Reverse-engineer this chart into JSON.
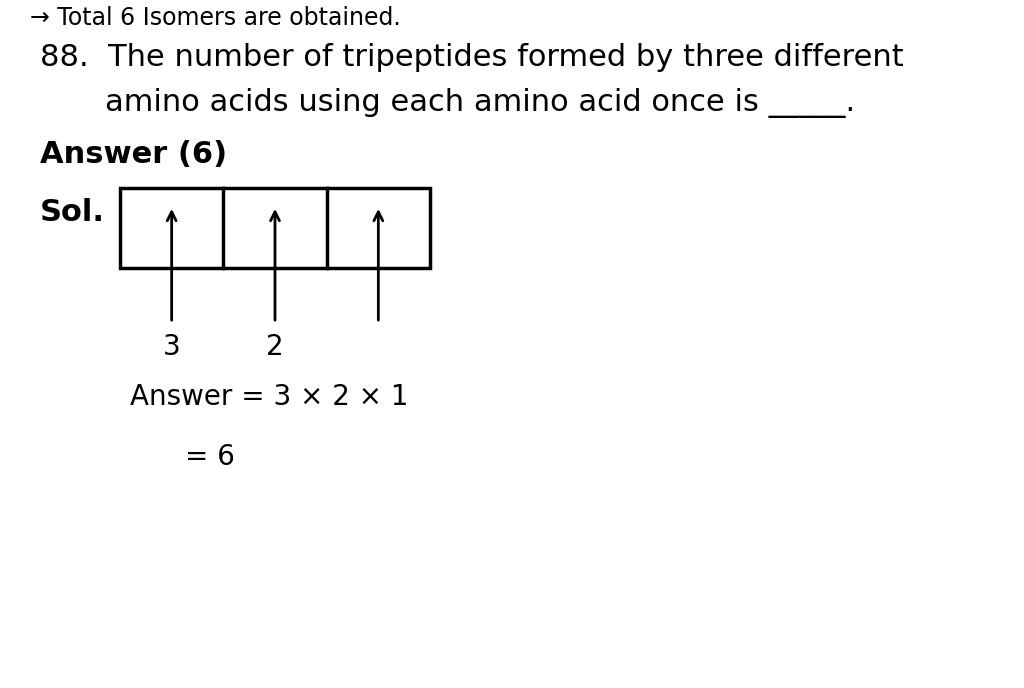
{
  "background_color": "#ffffff",
  "top_text": "→ Total 6 Isomers are obtained.",
  "question_number": "88.",
  "question_text": "The number of tripeptides formed by three different",
  "question_text2": "amino acids using each amino acid once is _____.",
  "answer_label": "Answer (6)",
  "sol_label": "Sol.",
  "num_cells": 3,
  "arrow_labels": [
    "3",
    "2"
  ],
  "answer_line1": "Answer = 3 × 2 × 1",
  "answer_line2": "= 6",
  "font_size_top": 17,
  "font_size_question": 22,
  "font_size_answer": 22,
  "font_size_sol": 22,
  "font_size_box_labels": 20,
  "font_size_eq": 20
}
